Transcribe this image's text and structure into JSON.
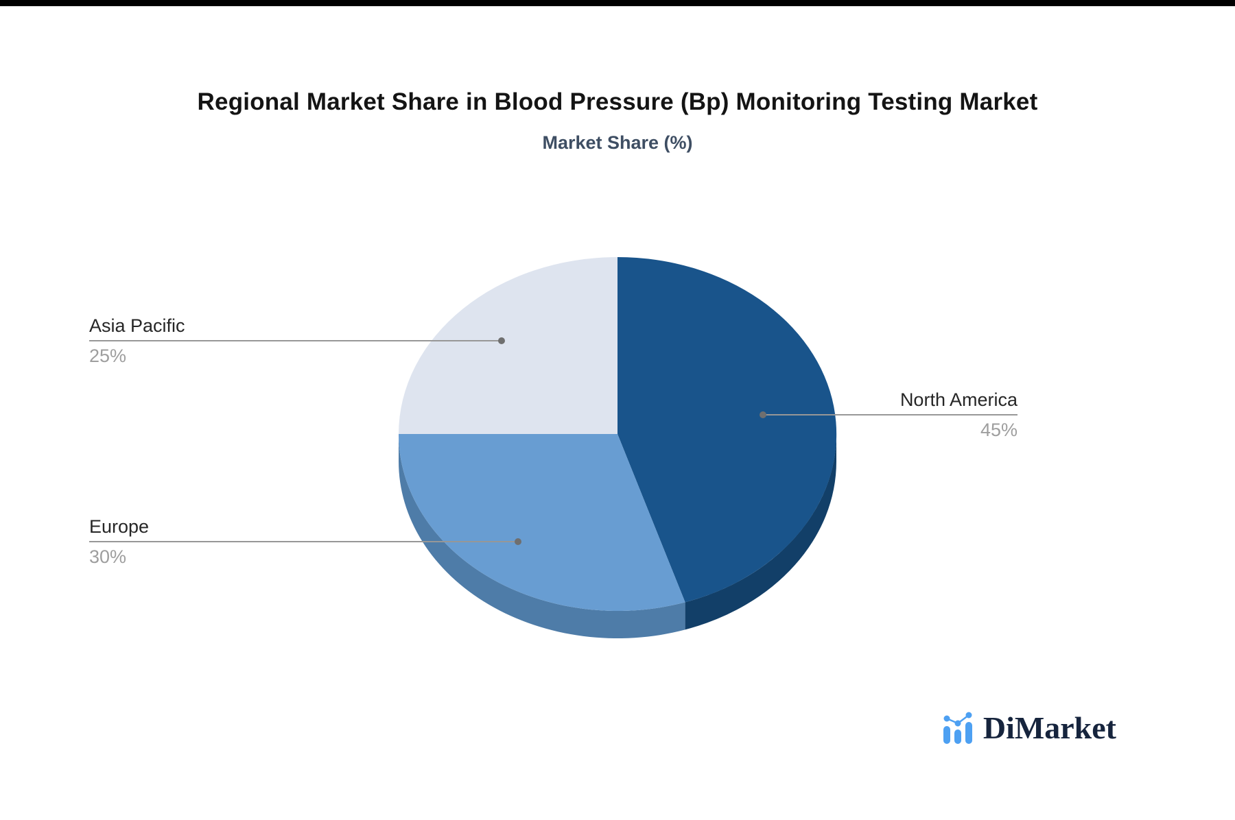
{
  "chart_data": {
    "type": "pie",
    "title": "Regional Market Share in Blood Pressure (Bp) Monitoring Testing Market",
    "subtitle": "Market Share (%)",
    "unit": "%",
    "start_angle_deg": 0,
    "direction": "clockwise",
    "effect": "3d-depth",
    "legend_position": "none",
    "slices": [
      {
        "label": "North America",
        "value": 45,
        "pct_label": "45%",
        "color": "#19548B",
        "side_color": "#123F68"
      },
      {
        "label": "Europe",
        "value": 30,
        "pct_label": "30%",
        "color": "#689DD2",
        "side_color": "#4E7CA8"
      },
      {
        "label": "Asia Pacific",
        "value": 25,
        "pct_label": "25%",
        "color": "#DEE4EF",
        "side_color": "#B9C4D6"
      }
    ],
    "leader_line_color": "#979797",
    "leader_dot_color": "#6F6F6F",
    "label_color": "#262626",
    "pct_color": "#9E9E9E"
  },
  "branding": {
    "logo_text": "DiMarket",
    "logo_icon": "bar-line-chart-icon",
    "logo_text_color": "#16243D",
    "logo_accent_color": "#4DA0F2"
  }
}
